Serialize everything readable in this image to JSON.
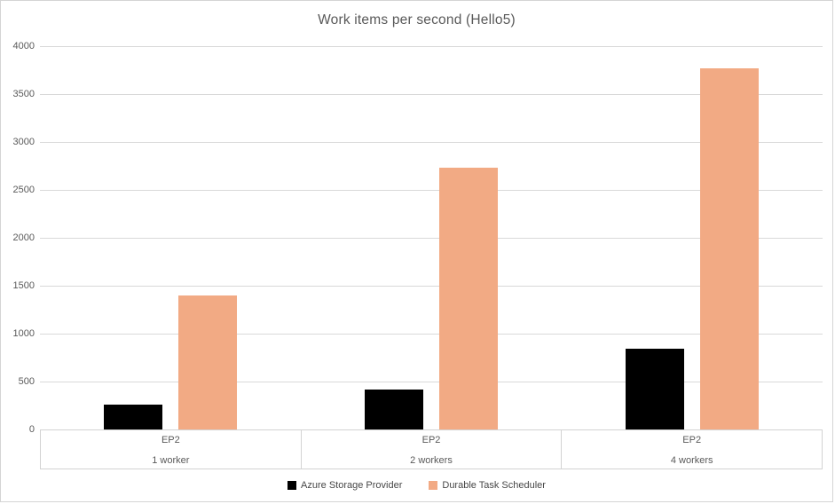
{
  "chart": {
    "title": "Work items per second (Hello5)"
  },
  "chart_data": {
    "type": "bar",
    "title": "Work items per second (Hello5)",
    "categories": [
      {
        "sku": "EP2",
        "workers": "1 worker"
      },
      {
        "sku": "EP2",
        "workers": "2 workers"
      },
      {
        "sku": "EP2",
        "workers": "4 workers"
      }
    ],
    "series": [
      {
        "name": "Azure Storage Provider",
        "color": "#000000",
        "values": [
          260,
          420,
          840
        ]
      },
      {
        "name": "Durable Task Scheduler",
        "color": "#F2AA84",
        "values": [
          1400,
          2730,
          3770
        ]
      }
    ],
    "xlabel": "",
    "ylabel": "",
    "ylim": [
      0,
      4000
    ],
    "yticks": [
      0,
      500,
      1000,
      1500,
      2000,
      2500,
      3000,
      3500,
      4000
    ],
    "grid": "horizontal",
    "gridline_color": "#D9D9D9",
    "legend_position": "bottom",
    "text_color": "#595959"
  }
}
